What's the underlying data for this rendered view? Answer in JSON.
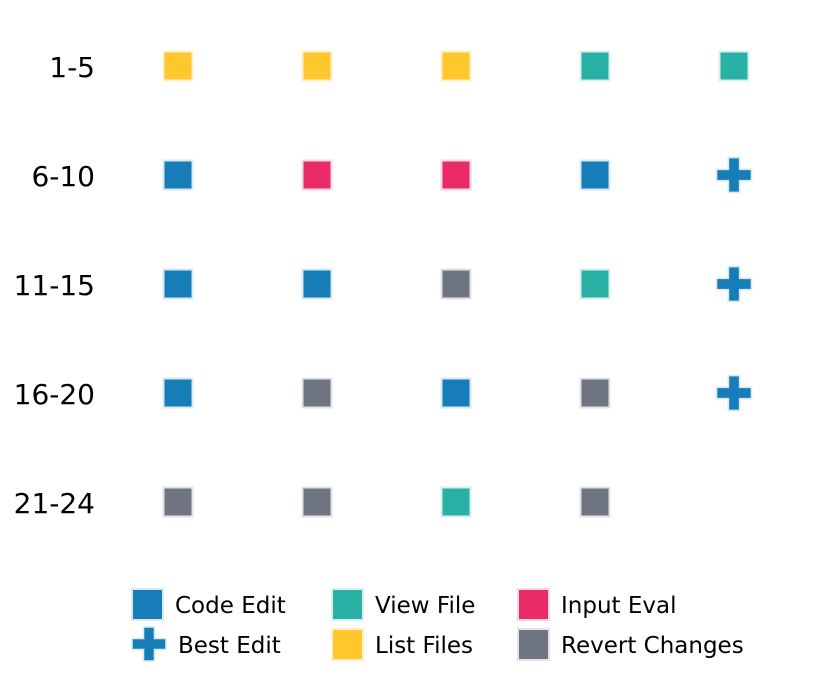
{
  "colors": {
    "background": "#ffffff",
    "text": "#000000",
    "code_blue": "#177db8",
    "view_teal": "#2ab1a5",
    "input_pink": "#e92b68",
    "list_yellow": "#fec72c",
    "revert_gray": "#6e7480"
  },
  "chart_data": {
    "type": "scatter",
    "title": "",
    "xlabel": "",
    "ylabel": "",
    "grid": false,
    "y_categories": [
      "1-5",
      "6-10",
      "11-15",
      "16-20",
      "21-24"
    ],
    "categories": {
      "code": {
        "label": "Code Edit",
        "shape": "square",
        "color": "#177db8",
        "edge": "#d9e9f4"
      },
      "best": {
        "label": "Best Edit",
        "shape": "plus",
        "color": "#177db8",
        "edge": "#d9e9f4"
      },
      "view": {
        "label": "View File",
        "shape": "square",
        "color": "#2ab1a5",
        "edge": "#d9efec"
      },
      "list": {
        "label": "List Files",
        "shape": "square",
        "color": "#fec72c",
        "edge": "#fdf0cd"
      },
      "input": {
        "label": "Input Eval",
        "shape": "square",
        "color": "#e92b68",
        "edge": "#fad9e4"
      },
      "revert": {
        "label": "Revert Changes",
        "shape": "square",
        "color": "#6e7480",
        "edge": "#e1e3e7"
      }
    },
    "rows": [
      {
        "label": "1-5",
        "cells": [
          "list",
          "list",
          "list",
          "view",
          "view"
        ]
      },
      {
        "label": "6-10",
        "cells": [
          "code",
          "input",
          "input",
          "code",
          "best"
        ]
      },
      {
        "label": "11-15",
        "cells": [
          "code",
          "code",
          "revert",
          "view",
          "best"
        ]
      },
      {
        "label": "16-20",
        "cells": [
          "code",
          "revert",
          "code",
          "revert",
          "best"
        ]
      },
      {
        "label": "21-24",
        "cells": [
          "revert",
          "revert",
          "view",
          "revert",
          null
        ]
      }
    ],
    "legend": {
      "position": "bottom",
      "columns": 3,
      "rows": [
        [
          "code",
          "view",
          "input"
        ],
        [
          "best",
          "list",
          "revert"
        ]
      ]
    }
  }
}
